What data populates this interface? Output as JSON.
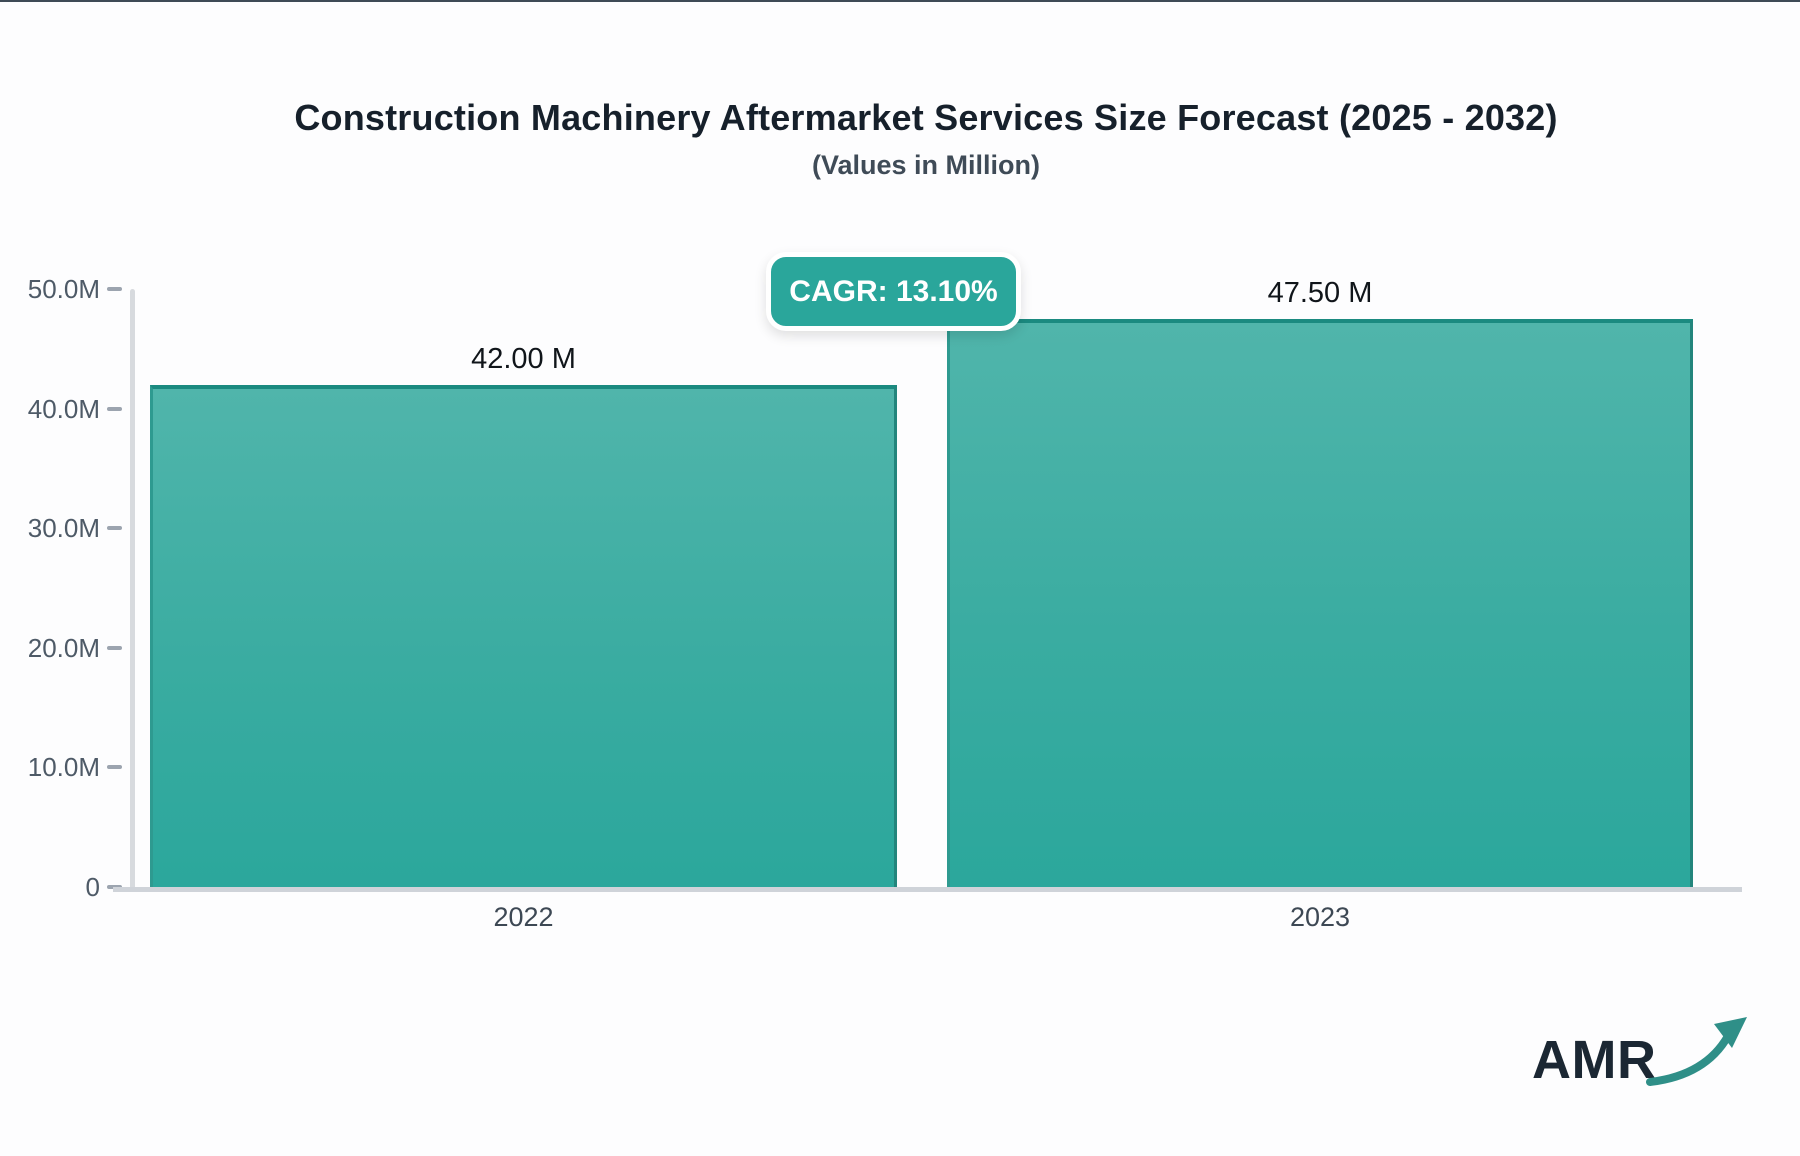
{
  "title": "Construction Machinery Aftermarket Services Size Forecast (2025 - 2032)",
  "subtitle": "(Values in Million)",
  "badge": {
    "label": "CAGR: 13.10%"
  },
  "logo": {
    "text": "AMR"
  },
  "chart_data": {
    "type": "bar",
    "categories": [
      "2022",
      "2023"
    ],
    "values": [
      42.0,
      47.5
    ],
    "bar_labels": [
      "42.00 M",
      "47.50 M"
    ],
    "unit": "Million",
    "ylim": [
      0,
      50
    ],
    "y_ticks": [
      {
        "label": "50.0M",
        "value": 50
      },
      {
        "label": "40.0M",
        "value": 40
      },
      {
        "label": "30.0M",
        "value": 30
      },
      {
        "label": "20.0M",
        "value": 20
      },
      {
        "label": "10.0M",
        "value": 10
      },
      {
        "label": "0",
        "value": 0
      }
    ],
    "grid": false,
    "legend": "none",
    "colors": {
      "bar_gradient_top": "#50b5ab",
      "bar_gradient_bottom": "#2ba79c",
      "bar_border": "#1b8a80",
      "badge_background": "#2aa69b",
      "badge_text": "#ffffff",
      "axis_line": "#d2d6dc",
      "tick_label": "#4e5a67",
      "title_text": "#16202b",
      "logo_arrow": "#2f8f88"
    }
  }
}
